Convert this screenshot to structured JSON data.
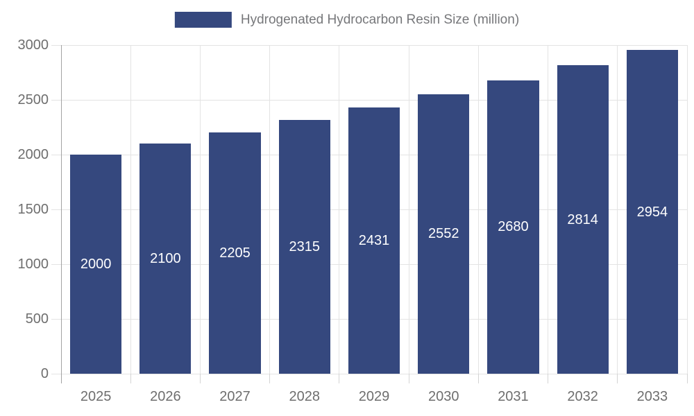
{
  "chart_data": {
    "type": "bar",
    "title": "",
    "legend": {
      "label": "Hydrogenated Hydrocarbon Resin Size (million)",
      "position": "top"
    },
    "categories": [
      "2025",
      "2026",
      "2027",
      "2028",
      "2029",
      "2030",
      "2031",
      "2032",
      "2033"
    ],
    "values": [
      2000,
      2100,
      2205,
      2315,
      2431,
      2552,
      2680,
      2814,
      2954
    ],
    "xlabel": "",
    "ylabel": "",
    "ylim": [
      0,
      3000
    ],
    "y_ticks": [
      0,
      500,
      1000,
      1500,
      2000,
      2500,
      3000
    ],
    "grid": true,
    "value_labels_shown": true,
    "colors": {
      "bar": "#35487e",
      "grid": "#e3e3e3",
      "axis": "#a2a2a2",
      "x_tick_mark": "#d4d4d4",
      "tick_label": "#6e6e6e",
      "legend_text": "#76777a",
      "value_label": "#ffffff",
      "background": "#ffffff"
    }
  }
}
